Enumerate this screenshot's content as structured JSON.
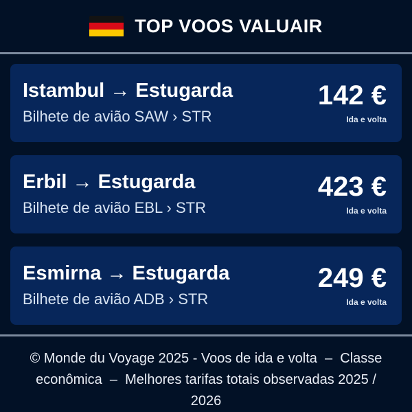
{
  "header": {
    "title": "TOP VOOS VALUAIR",
    "flag": "germany-flag-icon",
    "flag_colors": {
      "black": "#131313",
      "red": "#da0b18",
      "gold": "#fcc800"
    }
  },
  "flights": [
    {
      "route": "Istambul → Estugarda",
      "ticket": "Bilhete de avião SAW › STR",
      "price": "142 €",
      "trip_type": "Ida e volta"
    },
    {
      "route": "Erbil → Estugarda",
      "ticket": "Bilhete de avião EBL › STR",
      "price": "423 €",
      "trip_type": "Ida e volta"
    },
    {
      "route": "Esmirna → Estugarda",
      "ticket": "Bilhete de avião ADB › STR",
      "price": "249 €",
      "trip_type": "Ida e volta"
    }
  ],
  "footer": {
    "lines": [
      "© Monde du Voyage 2025 - Voos de ida e volta  –  Classe",
      "econômica  –  Melhores tarifas totais observadas 2025 / 2026"
    ]
  },
  "colors": {
    "page_bg": "#021126",
    "card_bg": "#07265a",
    "divider": "#7c8a9e",
    "title_text": "#ffffff",
    "subtitle_text": "#d7e3f2",
    "footer_text": "#e9eef6"
  }
}
